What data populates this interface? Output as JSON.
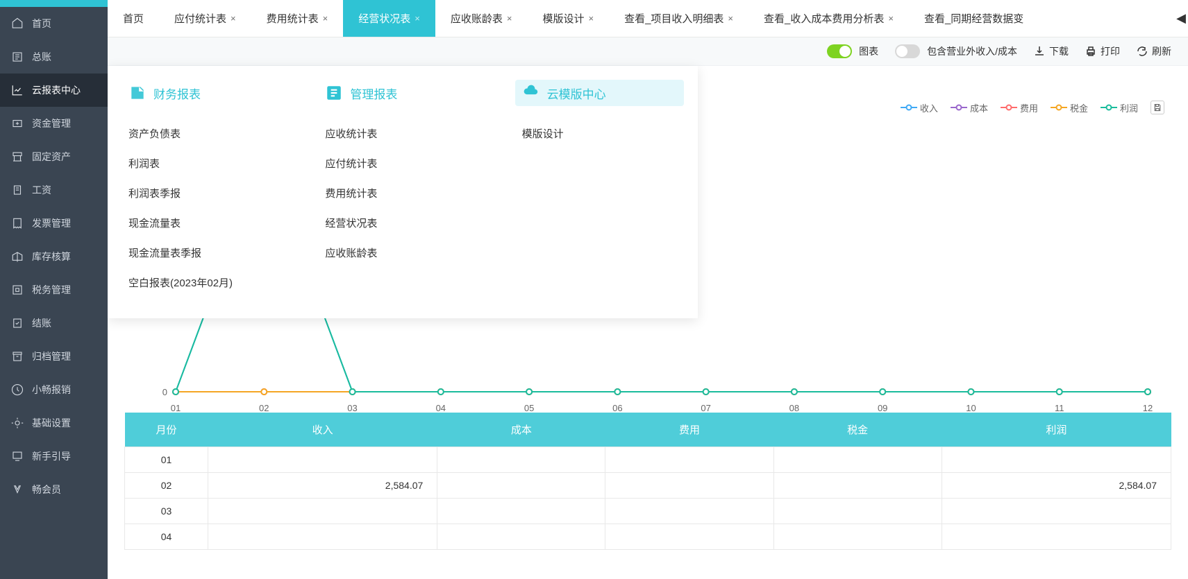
{
  "sidebar": {
    "items": [
      {
        "label": "首页",
        "icon": "home"
      },
      {
        "label": "总账",
        "icon": "ledger"
      },
      {
        "label": "云报表中心",
        "icon": "report",
        "active": true
      },
      {
        "label": "资金管理",
        "icon": "money"
      },
      {
        "label": "固定资产",
        "icon": "asset"
      },
      {
        "label": "工资",
        "icon": "salary"
      },
      {
        "label": "发票管理",
        "icon": "invoice"
      },
      {
        "label": "库存核算",
        "icon": "inventory"
      },
      {
        "label": "税务管理",
        "icon": "tax"
      },
      {
        "label": "结账",
        "icon": "close"
      },
      {
        "label": "归档管理",
        "icon": "archive"
      },
      {
        "label": "小畅报销",
        "icon": "expense"
      },
      {
        "label": "基础设置",
        "icon": "settings"
      },
      {
        "label": "新手引导",
        "icon": "guide"
      },
      {
        "label": "畅会员",
        "icon": "member"
      }
    ]
  },
  "tabs": [
    {
      "label": "首页",
      "closable": false
    },
    {
      "label": "应付统计表",
      "closable": true
    },
    {
      "label": "费用统计表",
      "closable": true
    },
    {
      "label": "经营状况表",
      "closable": true,
      "active": true
    },
    {
      "label": "应收账龄表",
      "closable": true
    },
    {
      "label": "模版设计",
      "closable": true
    },
    {
      "label": "查看_项目收入明细表",
      "closable": true
    },
    {
      "label": "查看_收入成本费用分析表",
      "closable": true
    },
    {
      "label": "查看_同期经营数据变",
      "closable": false
    }
  ],
  "toolbar": {
    "chart_toggle_label": "图表",
    "include_label": "包含营业外收入/成本",
    "download_label": "下载",
    "print_label": "打印",
    "refresh_label": "刷新"
  },
  "dropdown": {
    "col1": {
      "title": "财务报表",
      "items": [
        "资产负债表",
        "利润表",
        "利润表季报",
        "现金流量表",
        "现金流量表季报",
        "空白报表(2023年02月)"
      ]
    },
    "col2": {
      "title": "管理报表",
      "items": [
        "应收统计表",
        "应付统计表",
        "费用统计表",
        "经营状况表",
        "应收账龄表"
      ]
    },
    "col3": {
      "title": "云模版中心",
      "items": [
        "模版设计"
      ]
    }
  },
  "chart": {
    "type": "line",
    "legend": [
      {
        "label": "收入",
        "color": "#3fa9f5",
        "marker": "circle-open"
      },
      {
        "label": "成本",
        "color": "#9966cc",
        "marker": "circle-open"
      },
      {
        "label": "费用",
        "color": "#ff6b6b",
        "marker": "circle-open"
      },
      {
        "label": "税金",
        "color": "#f5a623",
        "marker": "circle-open"
      },
      {
        "label": "利润",
        "color": "#1abc9c",
        "marker": "circle-open"
      }
    ],
    "x_categories": [
      "01",
      "02",
      "03",
      "04",
      "05",
      "06",
      "07",
      "08",
      "09",
      "10",
      "11",
      "12"
    ],
    "y_axis": {
      "min": 0,
      "visible_label": "0"
    },
    "series": {
      "income": {
        "color": "#3fa9f5",
        "values": [
          0,
          2584.07,
          0,
          0,
          0,
          0,
          0,
          0,
          0,
          0,
          0,
          0
        ]
      },
      "cost": {
        "color": "#9966cc",
        "values": [
          0,
          0,
          0,
          0,
          0,
          0,
          0,
          0,
          0,
          0,
          0,
          0
        ]
      },
      "fee": {
        "color": "#ff6b6b",
        "values": [
          0,
          0,
          0,
          0,
          0,
          0,
          0,
          0,
          0,
          0,
          0,
          0
        ]
      },
      "tax": {
        "color": "#f5a623",
        "values": [
          0,
          0,
          0,
          0,
          0,
          0,
          0,
          0,
          0,
          0,
          0,
          0
        ]
      },
      "profit": {
        "color": "#1abc9c",
        "values": [
          0,
          2584.07,
          0,
          0,
          0,
          0,
          0,
          0,
          0,
          0,
          0,
          0
        ]
      }
    },
    "grid_color": "#e8e8e8",
    "background_color": "#ffffff",
    "marker_size": 4
  },
  "table": {
    "columns": [
      "月份",
      "收入",
      "成本",
      "费用",
      "税金",
      "利润"
    ],
    "rows": [
      {
        "month": "01",
        "income": "",
        "cost": "",
        "fee": "",
        "tax": "",
        "profit": ""
      },
      {
        "month": "02",
        "income": "2,584.07",
        "cost": "",
        "fee": "",
        "tax": "",
        "profit": "2,584.07"
      },
      {
        "month": "03",
        "income": "",
        "cost": "",
        "fee": "",
        "tax": "",
        "profit": ""
      },
      {
        "month": "04",
        "income": "",
        "cost": "",
        "fee": "",
        "tax": "",
        "profit": ""
      }
    ]
  }
}
